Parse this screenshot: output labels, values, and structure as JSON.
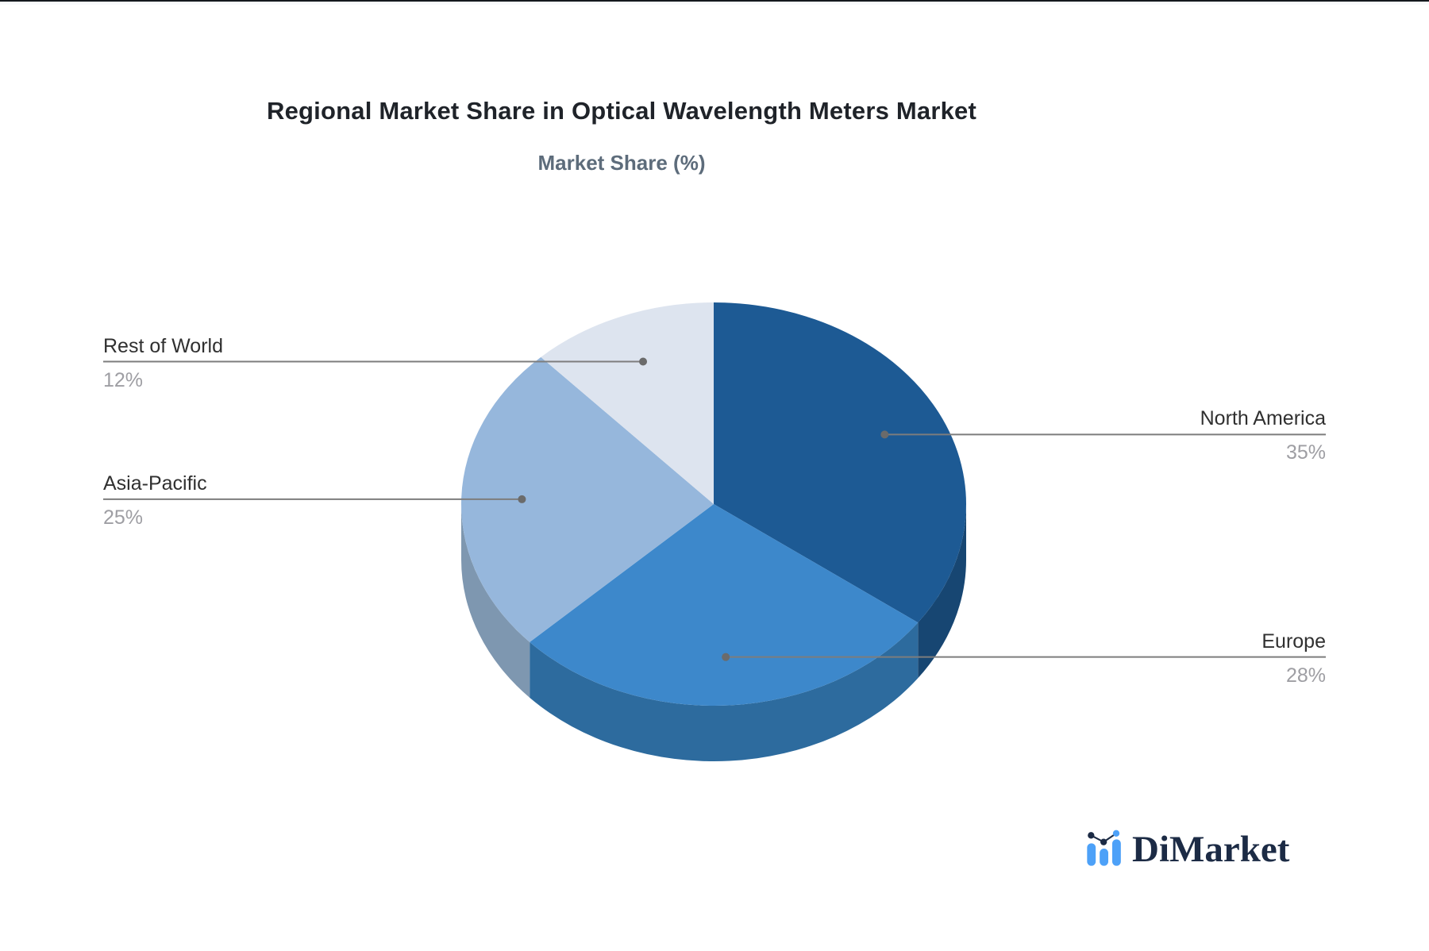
{
  "page": {
    "title": "Regional Market Share in Optical Wavelength Meters Market",
    "subtitle": "Market Share (%)"
  },
  "logo": {
    "brand": "DiMarket",
    "icon": "bar-chart-logo-icon",
    "brand_color": "#1c2b45",
    "icon_color": "#4da1f8"
  },
  "chart_data": {
    "type": "pie",
    "style": "3d",
    "title": "Regional Market Share in Optical Wavelength Meters Market",
    "subtitle": "Market Share (%)",
    "unit": "%",
    "start_angle_deg": 0,
    "direction": "clockwise",
    "legend_position": "callout-labels",
    "leader_line_color": "#7d7d7d",
    "leader_dot_color": "#6b6b6b",
    "slices": [
      {
        "label": "North America",
        "value": 35,
        "pct_label": "35%",
        "color": "#1d5a94",
        "side_color": "#174672",
        "callout_side": "right"
      },
      {
        "label": "Europe",
        "value": 28,
        "pct_label": "28%",
        "color": "#3d88cb",
        "side_color": "#2d6b9e",
        "callout_side": "right"
      },
      {
        "label": "Asia-Pacific",
        "value": 25,
        "pct_label": "25%",
        "color": "#96b7dc",
        "side_color": "#7e97b0",
        "callout_side": "left"
      },
      {
        "label": "Rest of World",
        "value": 12,
        "pct_label": "12%",
        "color": "#dde4ef",
        "side_color": "#b9c5d8",
        "callout_side": "left"
      }
    ]
  }
}
